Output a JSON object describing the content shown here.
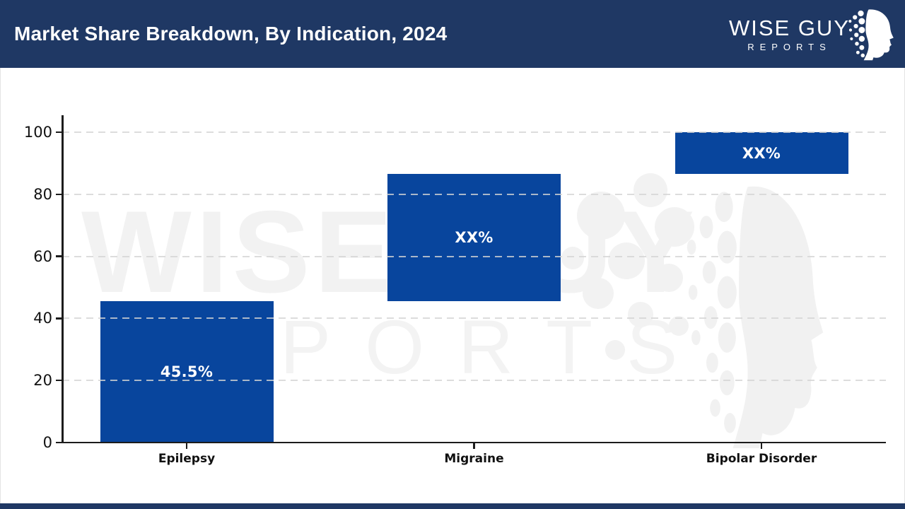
{
  "header": {
    "title": "Market Share Breakdown, By Indication, 2024",
    "logo": {
      "line1": "WISE GUY",
      "line2": "REPORTS"
    }
  },
  "watermark": {
    "line1": "WISE GUY",
    "line2": "REPORTS"
  },
  "colors": {
    "header_navy": "#1f3864",
    "bar_blue": "#08459d",
    "grid_gray": "#d4d4d4",
    "watermark_gray": "#f2f2f2",
    "bar_label_white": "#ffffff"
  },
  "chart_data": {
    "type": "bar",
    "subtype": "waterfall",
    "title": "Market Share Breakdown, By Indication, 2024",
    "categories": [
      "Epilepsy",
      "Migraine",
      "Bipolar Disorder"
    ],
    "segments": [
      {
        "category": "Epilepsy",
        "start": 0,
        "end": 45.5,
        "label": "45.5%"
      },
      {
        "category": "Migraine",
        "start": 45.5,
        "end": 86.5,
        "label": "XX%"
      },
      {
        "category": "Bipolar Disorder",
        "start": 86.5,
        "end": 100,
        "label": "XX%"
      }
    ],
    "xlabel": "",
    "ylabel": "",
    "ylim": [
      0,
      100
    ],
    "yticks": [
      0,
      20,
      40,
      60,
      80,
      100
    ],
    "grid": "dashed horizontal, light gray",
    "legend": "none"
  }
}
